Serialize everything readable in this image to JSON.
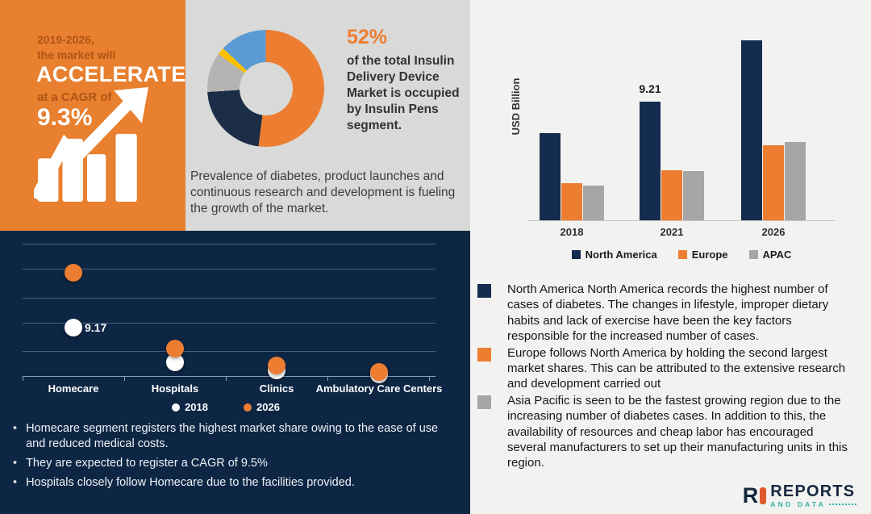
{
  "colors": {
    "orange": "#ed7d31",
    "orange_panel": "#e8802f",
    "navy": "#142c4f",
    "navy_panel": "#0d2644",
    "gray_series": "#a6a6a6",
    "donut_gray": "#b4b4b2",
    "donut_yellow": "#ffc000",
    "donut_blue": "#5b9bd5",
    "teal": "#2eb3a8",
    "panel_gray": "#d9d9d8",
    "panel_light": "#f2f2f0",
    "dark_orange_text": "#b05413"
  },
  "accelerate_panel": {
    "period_line1": "2019-2026,",
    "period_line2": "the market will",
    "headline": "ACCELERATE",
    "subline": "at a CAGR of",
    "cagr": "9.3%"
  },
  "donut_panel": {
    "stat": "52%",
    "stat_desc": "of the total Insulin Delivery Device Market is occupied by Insulin Pens segment.",
    "note": "Prevalence of diabetes, product launches and continuous research and development is fueling the growth of the market."
  },
  "regions": [
    {
      "swatch": "#142c4f",
      "text": "North America North America records the highest number of cases of diabetes. The changes in lifestyle, improper dietary habits and lack of exercise have been the key factors responsible for the increased number of cases."
    },
    {
      "swatch": "#ed7d31",
      "text": "Europe follows North America by holding the second largest market shares. This can be attributed to the extensive research and development carried out"
    },
    {
      "swatch": "#a6a6a6",
      "text": "Asia Pacific is seen to be the fastest growing region due to the increasing number of diabetes cases. In addition to this, the availability of resources and cheap labor has encouraged several manufacturers to set up their manufacturing units in this region."
    }
  ],
  "segment_bullets": [
    "Homecare segment registers the highest market share owing to the ease of use and reduced medical costs.",
    "They are expected to register a CAGR of 9.5%",
    "Hospitals closely follow Homecare due to the facilities provided."
  ],
  "logo": {
    "mark": "R",
    "name_top": "REPORTS",
    "name_bottom": "AND DATA"
  },
  "chart_data": [
    {
      "id": "segment-donut",
      "type": "pie",
      "subtype": "donut",
      "slices": [
        {
          "label": "Insulin Pens segment",
          "value": 52,
          "color": "#ed7d31"
        },
        {
          "label": "",
          "value": 22,
          "color": "#1b2d47"
        },
        {
          "label": "",
          "value": 11,
          "color": "#b4b4b2"
        },
        {
          "label": "",
          "value": 2,
          "color": "#ffc000"
        },
        {
          "label": "",
          "value": 13,
          "color": "#5b9bd5"
        }
      ],
      "callout": "52% of the total Insulin Delivery Device Market is occupied by Insulin Pens segment.",
      "labels_shown": false
    },
    {
      "id": "regional-bar",
      "type": "bar",
      "categories": [
        "2018",
        "2021",
        "2026"
      ],
      "series": [
        {
          "name": "North America",
          "color": "#142c4f",
          "values": [
            6.8,
            9.21,
            14.0
          ]
        },
        {
          "name": "Europe",
          "color": "#ed7d31",
          "values": [
            2.9,
            3.9,
            5.8
          ]
        },
        {
          "name": "APAC",
          "color": "#a6a6a6",
          "values": [
            2.7,
            3.8,
            6.1
          ]
        }
      ],
      "ylabel": "USD Billion",
      "xlabel": "",
      "ylim": [
        0,
        14.5
      ],
      "axis_value_labels_shown": false,
      "grid": false,
      "legend_position": "bottom",
      "data_labels": [
        {
          "series": "North America",
          "category": "2021",
          "text": "9.21"
        }
      ]
    },
    {
      "id": "end-use-dot-plot",
      "type": "scatter",
      "categories": [
        "Homecare",
        "Hospitals",
        "Clinics",
        "Ambulatory Care Centers"
      ],
      "series": [
        {
          "name": "2018",
          "color": "#ffffff",
          "values": [
            9.17,
            2.6,
            1.0,
            0.3
          ]
        },
        {
          "name": "2026",
          "color": "#ed7d31",
          "values": [
            19.4,
            5.2,
            2.0,
            0.8
          ]
        }
      ],
      "ylim": [
        0,
        27
      ],
      "gridline_step": 5,
      "grid": true,
      "legend_position": "bottom",
      "data_labels": [
        {
          "series": "2018",
          "category": "Homecare",
          "text": "9.17"
        }
      ]
    }
  ]
}
